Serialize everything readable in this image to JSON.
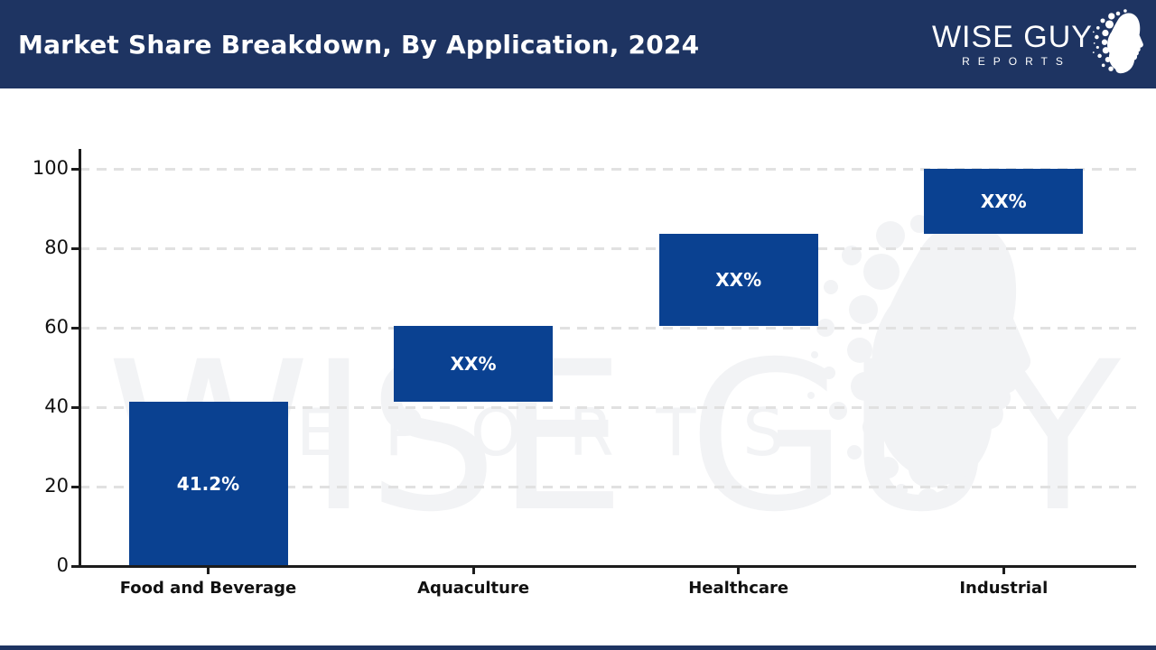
{
  "header": {
    "title": "Market Share Breakdown, By Application, 2024",
    "logo": {
      "name": "WISE GUY",
      "subtitle": "REPORTS"
    }
  },
  "watermark": {
    "line1": "WISE GUY",
    "line2": "REPORTS"
  },
  "colors": {
    "header_bg": "#1e3462",
    "title_text": "#ffffff",
    "bar": "#0a4191",
    "bar_label": "#ffffff",
    "grid": "#e1e1e1",
    "axis": "#1c1c1c",
    "tick_label": "#111111",
    "watermark": "#f2f3f5"
  },
  "chart_data": {
    "type": "bar",
    "subtype": "waterfall",
    "title": "Market Share Breakdown, By Application, 2024",
    "unit": "%",
    "categories": [
      "Food and Beverage",
      "Aquaculture",
      "Healthcare",
      "Industrial"
    ],
    "segments": [
      {
        "category": "Food and Beverage",
        "start": 0,
        "end": 41.2,
        "label": "41.2%"
      },
      {
        "category": "Aquaculture",
        "start": 41.2,
        "end": 60.3,
        "label": "XX%"
      },
      {
        "category": "Healthcare",
        "start": 60.3,
        "end": 83.5,
        "label": "XX%"
      },
      {
        "category": "Industrial",
        "start": 83.5,
        "end": 100,
        "label": "XX%"
      }
    ],
    "yticks": [
      0,
      20,
      40,
      60,
      80,
      100
    ],
    "ylim": [
      0,
      105
    ],
    "xlabel": "",
    "ylabel": "",
    "grid": "horizontal-dashed",
    "legend": "none"
  }
}
